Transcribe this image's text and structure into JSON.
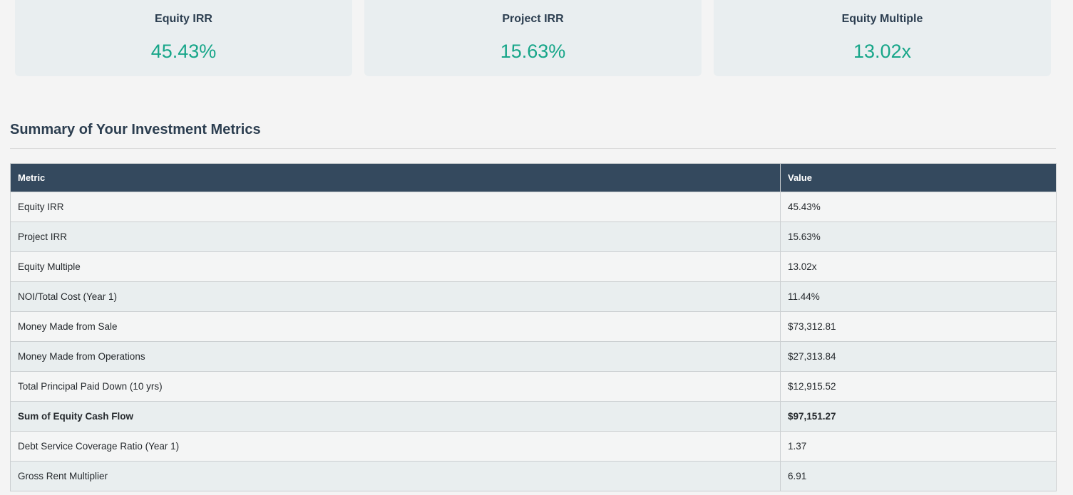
{
  "cards": [
    {
      "label": "Equity IRR",
      "value": "45.43%"
    },
    {
      "label": "Project IRR",
      "value": "15.63%"
    },
    {
      "label": "Equity Multiple",
      "value": "13.02x"
    }
  ],
  "section": {
    "title": "Summary of Your Investment Metrics"
  },
  "table": {
    "columns": [
      "Metric",
      "Value"
    ],
    "rows": [
      {
        "metric": "Equity IRR",
        "value": "45.43%",
        "bold": false
      },
      {
        "metric": "Project IRR",
        "value": "15.63%",
        "bold": false
      },
      {
        "metric": "Equity Multiple",
        "value": "13.02x",
        "bold": false
      },
      {
        "metric": "NOI/Total Cost (Year 1)",
        "value": "11.44%",
        "bold": false
      },
      {
        "metric": "Money Made from Sale",
        "value": "$73,312.81",
        "bold": false
      },
      {
        "metric": "Money Made from Operations",
        "value": "$27,313.84",
        "bold": false
      },
      {
        "metric": "Total Principal Paid Down (10 yrs)",
        "value": "$12,915.52",
        "bold": false
      },
      {
        "metric": "Sum of Equity Cash Flow",
        "value": "$97,151.27",
        "bold": true
      },
      {
        "metric": "Debt Service Coverage Ratio (Year 1)",
        "value": "1.37",
        "bold": false
      },
      {
        "metric": "Gross Rent Multiplier",
        "value": "6.91",
        "bold": false
      }
    ]
  },
  "colors": {
    "accent_teal": "#17a689",
    "header_navy": "#34495e",
    "heading_text": "#2c3e50",
    "card_bg": "#e9eef0",
    "page_bg": "#f4f4f4"
  }
}
